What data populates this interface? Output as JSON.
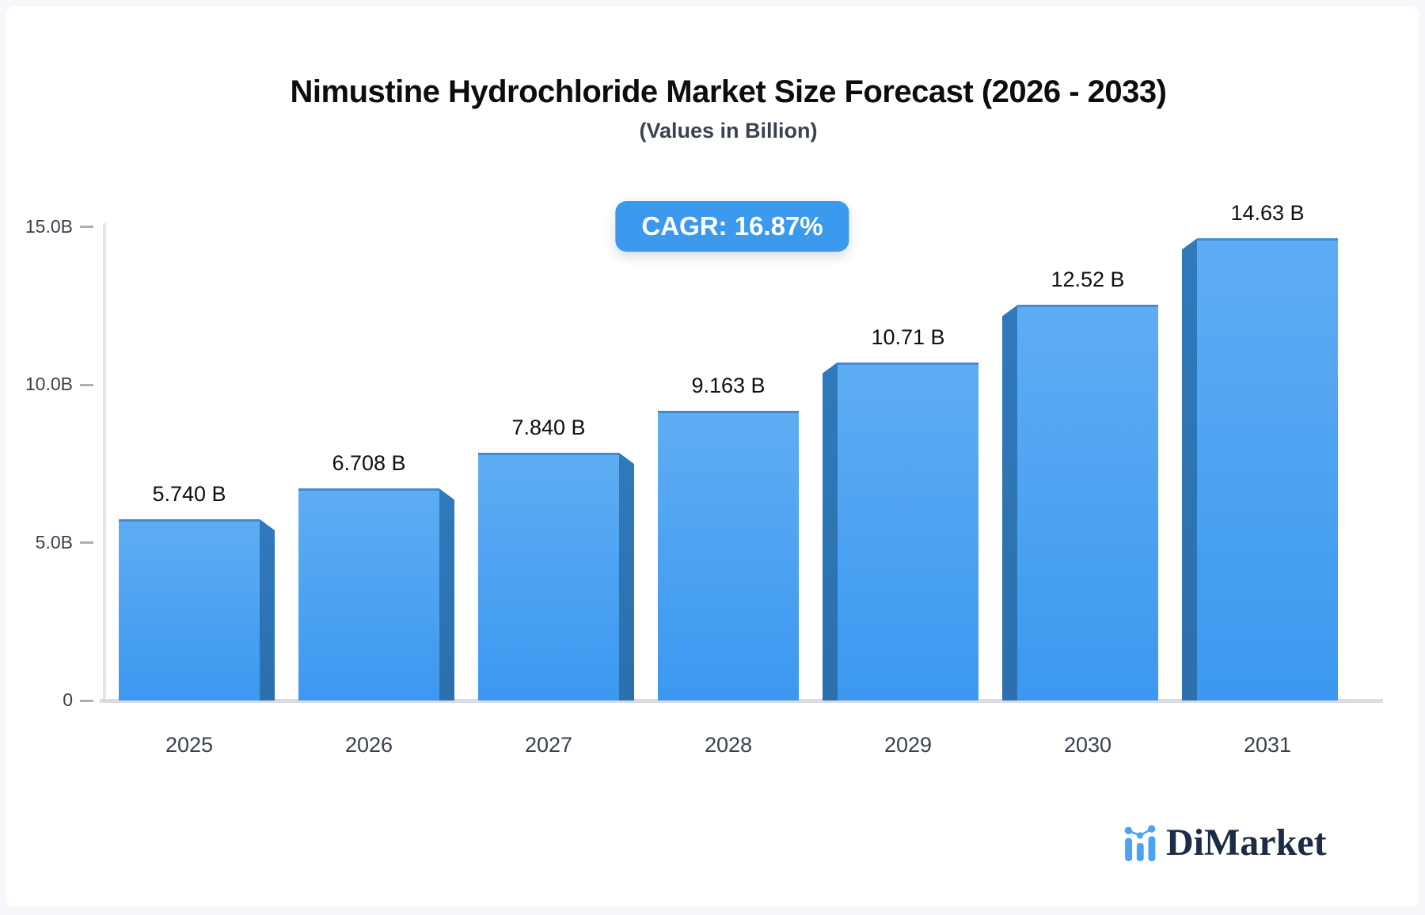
{
  "header": {
    "title": "Nimustine Hydrochloride Market Size Forecast (2026 - 2033)",
    "subtitle": "(Values in Billion)",
    "cagr_label": "CAGR: 16.87%"
  },
  "chart_data": {
    "type": "bar",
    "title": "Nimustine Hydrochloride Market Size Forecast (2026 - 2033)",
    "subtitle": "(Values in Billion)",
    "annotation": "CAGR: 16.87%",
    "categories": [
      "2025",
      "2026",
      "2027",
      "2028",
      "2029",
      "2030",
      "2031"
    ],
    "values": [
      5.74,
      6.708,
      7.84,
      9.163,
      10.71,
      12.52,
      14.63
    ],
    "value_labels": [
      "5.740 B",
      "6.708 B",
      "7.840 B",
      "9.163 B",
      "10.71 B",
      "12.52 B",
      "14.63 B"
    ],
    "unit": "Billion",
    "xlabel": "",
    "ylabel": "",
    "ylim": [
      0,
      15
    ],
    "yticks": [
      {
        "label": "15.0B",
        "value": 15
      },
      {
        "label": "10.0B",
        "value": 10
      },
      {
        "label": "5.0B",
        "value": 5
      },
      {
        "label": "0",
        "value": 0
      }
    ],
    "grid": false,
    "legend_position": "none",
    "bar_face_color_top": "#5EADF3",
    "bar_face_color_bottom": "#3C98F0",
    "bar_side_color": "#2E76B7",
    "style": "3d-perspective-bars"
  },
  "branding": {
    "logo_text": "DiMarket",
    "logo_icon": "mini-bar-chart-icon",
    "logo_icon_color": "#4DA2F5",
    "logo_text_color": "#1c2b46"
  },
  "colors": {
    "accent_blue": "#3B99EE",
    "page_background": "#f5f7fa",
    "card_background": "#ffffff",
    "axis_line": "#d9dde2",
    "tick_text": "#39404d"
  }
}
